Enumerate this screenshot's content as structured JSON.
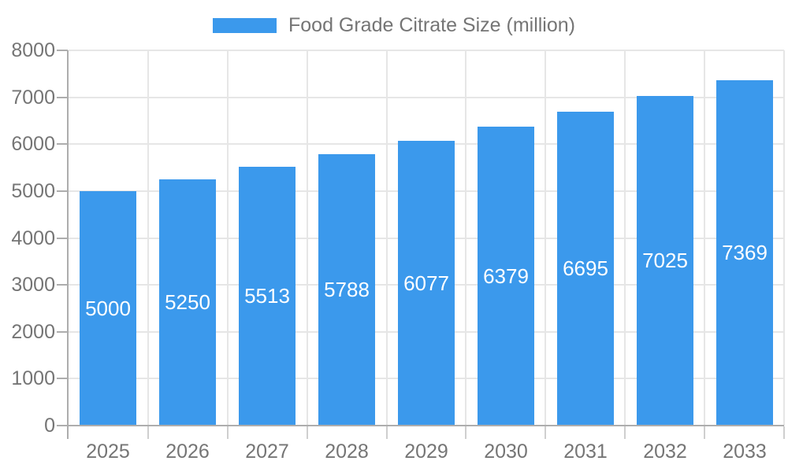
{
  "chart_data": {
    "type": "bar",
    "legend": {
      "label": "Food Grade Citrate Size (million)",
      "position": "top"
    },
    "categories": [
      "2025",
      "2026",
      "2027",
      "2028",
      "2029",
      "2030",
      "2031",
      "2032",
      "2033"
    ],
    "values": [
      5000,
      5250,
      5513,
      5788,
      6077,
      6379,
      6695,
      7025,
      7369
    ],
    "value_labels": [
      "5000",
      "5250",
      "5513",
      "5788",
      "6077",
      "6379",
      "6695",
      "7025",
      "7369"
    ],
    "xlabel": "",
    "ylabel": "",
    "ylim": [
      0,
      8000
    ],
    "yticks": [
      0,
      1000,
      2000,
      3000,
      4000,
      5000,
      6000,
      7000,
      8000
    ],
    "grid": true,
    "colors": {
      "bar": "#3B99EC",
      "value_label": "#FFFFFF",
      "axis_text": "#757575",
      "grid_line": "#E6E6E6",
      "axis_line": "#ADADAD",
      "tick_line": "#CFCFCF"
    }
  }
}
